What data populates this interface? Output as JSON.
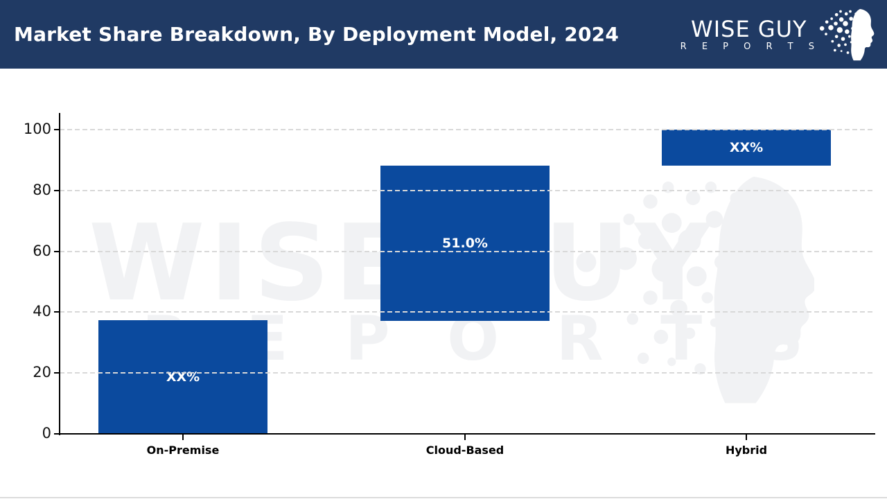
{
  "header": {
    "title": "Market Share Breakdown, By Deployment Model, 2024",
    "logo": {
      "line1": "WISE GUY",
      "line2": "R E P O R T S",
      "icon": "head-profile-dots-icon"
    }
  },
  "watermark": {
    "line1": "WISE GUY",
    "line2": "R E P O R T S",
    "icon": "head-profile-dots-icon"
  },
  "chart_data": {
    "type": "bar",
    "subtype": "stacked-waterfall-floating-bars",
    "title": "Market Share Breakdown, By Deployment Model, 2024",
    "categories": [
      "On-Premise",
      "Cloud-Based",
      "Hybrid"
    ],
    "segments": [
      {
        "category": "On-Premise",
        "label": "XX%",
        "start": 0,
        "end": 37.3
      },
      {
        "category": "Cloud-Based",
        "label": "51.0%",
        "start": 37.1,
        "end": 88.1
      },
      {
        "category": "Hybrid",
        "label": "XX%",
        "start": 88.1,
        "end": 100.1
      }
    ],
    "yticks": [
      0,
      20,
      40,
      60,
      80,
      100
    ],
    "ylim": [
      0,
      105.5
    ],
    "xlabel": "",
    "ylabel": "",
    "grid": "dashed-horizontal-over-bars",
    "legend": "none"
  },
  "colors": {
    "header_bg": "#203a64",
    "bar": "#0b4a9e",
    "bar_label": "#ffffff",
    "grid": "#d8d8d8",
    "axis": "#000000",
    "watermark": "#f1f2f4",
    "bottom_hairline": "#dcdcdc"
  }
}
